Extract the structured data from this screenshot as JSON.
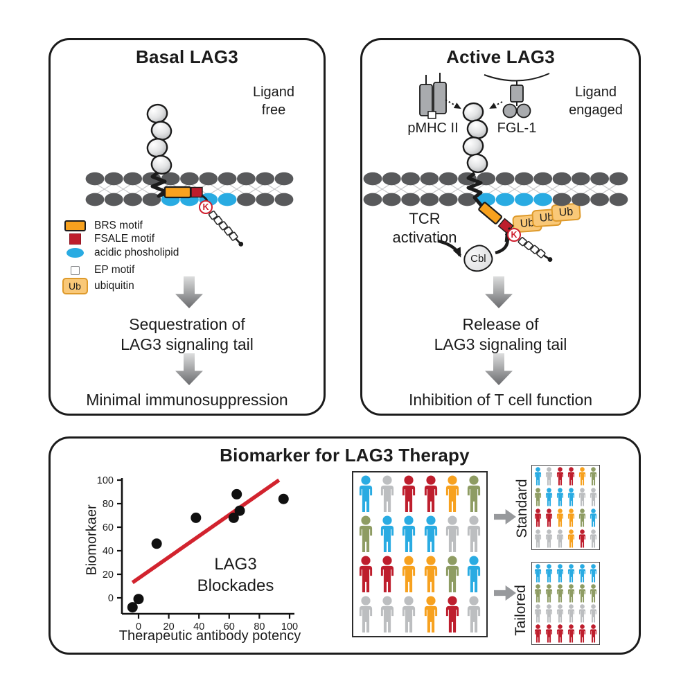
{
  "colors": {
    "blue": "#29ABE2",
    "red": "#BE1E2D",
    "orange": "#F7A11E",
    "green": "#8E9C63",
    "gray": "#BCBEC0",
    "membrane": "#58595B",
    "lipid_tail": "#C7C8CA",
    "ub_fill": "#F9C878",
    "ub_border": "#DE9A2B",
    "trend_red": "#D2232E",
    "ligand_gray": "#A9ABAE"
  },
  "basal": {
    "title": "Basal LAG3",
    "state_line1": "Ligand",
    "state_line2": "free",
    "legend": [
      {
        "type": "brs",
        "label": "BRS motif"
      },
      {
        "type": "fsale",
        "label": "FSALE motif"
      },
      {
        "type": "phospholipid",
        "label": "acidic phosholipid"
      },
      {
        "type": "ep",
        "label": "EP motif"
      },
      {
        "type": "ub",
        "label": "ubiquitin",
        "box_text": "Ub"
      }
    ],
    "k_label": "K",
    "outcome": {
      "line1": "Sequestration of",
      "line2": "LAG3 signaling tail"
    },
    "result": "Minimal immunosuppression"
  },
  "active": {
    "title": "Active LAG3",
    "state_line1": "Ligand",
    "state_line2": "engaged",
    "ligand_mhc": "pMHC II",
    "ligand_fgl": "FGL-1",
    "tcr_line1": "TCR",
    "tcr_line2": "activation",
    "cbl_label": "Cbl",
    "ub_label": "Ub",
    "k_label": "K",
    "outcome": {
      "line1": "Release of",
      "line2": "LAG3 signaling tail"
    },
    "result": "Inhibition of T cell function"
  },
  "biomarker": {
    "title": "Biomarker for LAG3 Therapy",
    "standard_label": "Standard",
    "tailored_label": "Tailored",
    "population_grid": [
      [
        "blue",
        "gray",
        "red",
        "red",
        "orange",
        "green"
      ],
      [
        "green",
        "blue",
        "blue",
        "blue",
        "gray",
        "gray"
      ],
      [
        "red",
        "red",
        "orange",
        "orange",
        "green",
        "blue"
      ],
      [
        "gray",
        "gray",
        "gray",
        "orange",
        "red",
        "gray"
      ]
    ],
    "standard_grid": [
      [
        "blue",
        "gray",
        "red",
        "red",
        "orange",
        "green"
      ],
      [
        "green",
        "blue",
        "blue",
        "blue",
        "gray",
        "gray"
      ],
      [
        "red",
        "red",
        "orange",
        "orange",
        "green",
        "blue"
      ],
      [
        "gray",
        "gray",
        "gray",
        "orange",
        "red",
        "gray"
      ]
    ],
    "tailored_grid": [
      [
        "blue",
        "blue",
        "blue",
        "blue",
        "blue",
        "blue"
      ],
      [
        "green",
        "green",
        "green",
        "green",
        "green",
        "green"
      ],
      [
        "gray",
        "gray",
        "gray",
        "gray",
        "gray",
        "gray"
      ],
      [
        "red",
        "red",
        "red",
        "red",
        "red",
        "red"
      ]
    ]
  },
  "chart_data": {
    "type": "scatter",
    "xlabel": "Therapeutic antibody potency",
    "ylabel": "Biomorkaer",
    "x_ticks": [
      0,
      20,
      40,
      60,
      80,
      100
    ],
    "y_ticks": [
      0,
      20,
      40,
      60,
      80,
      100
    ],
    "xlim": [
      -11,
      103
    ],
    "ylim": [
      -13,
      102
    ],
    "points": [
      [
        -4,
        -8
      ],
      [
        0,
        -1
      ],
      [
        12,
        46
      ],
      [
        38,
        68
      ],
      [
        63,
        68
      ],
      [
        67,
        74
      ],
      [
        65,
        88
      ],
      [
        96,
        84
      ]
    ],
    "trend_line": {
      "x1": -4,
      "y1": 13,
      "x2": 93,
      "y2": 100
    },
    "annotation": [
      "LAG3",
      "Blockades"
    ],
    "grid": false,
    "legend": false
  }
}
